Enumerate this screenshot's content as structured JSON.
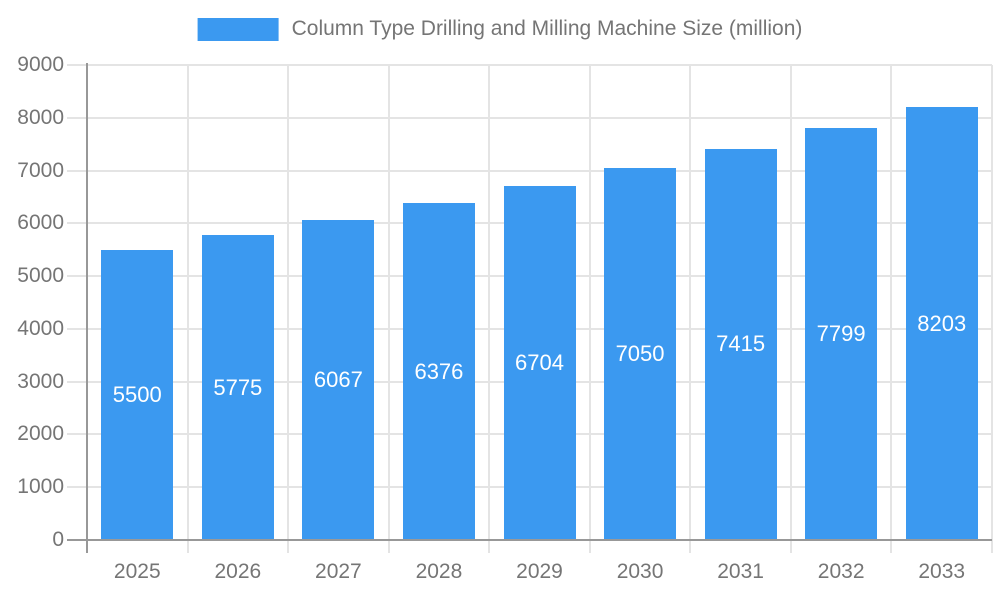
{
  "chart_data": {
    "type": "bar",
    "title": "Column Type Drilling and Milling Machine Size (million)",
    "categories": [
      "2025",
      "2026",
      "2027",
      "2028",
      "2029",
      "2030",
      "2031",
      "2032",
      "2033"
    ],
    "values": [
      5500,
      5775,
      6067,
      6376,
      6704,
      7050,
      7415,
      7799,
      8203
    ],
    "xlabel": "",
    "ylabel": "",
    "ylim": [
      0,
      9000
    ],
    "yticks": [
      0,
      1000,
      2000,
      3000,
      4000,
      5000,
      6000,
      7000,
      8000,
      9000
    ],
    "grid": true,
    "legend_position": "top",
    "value_labels_inside_bars": true,
    "colors": {
      "bar": "#3B99F0",
      "bar_value_text": "#ffffff",
      "axis_text": "#757575",
      "axis_line": "#989898",
      "gridline": "#e4e4e4",
      "background": "#ffffff"
    }
  }
}
